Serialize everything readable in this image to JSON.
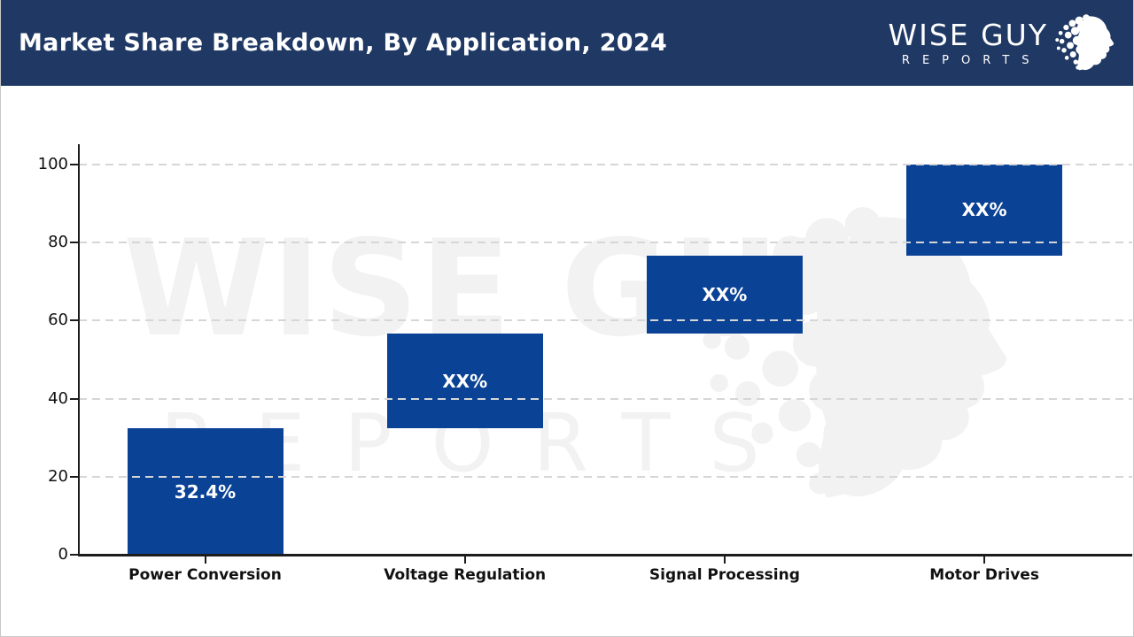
{
  "header": {
    "title": "Market Share Breakdown, By Application, 2024",
    "logo": {
      "line1": "WISE GUY",
      "line2": "REPORTS"
    }
  },
  "watermark": {
    "line1": "WISE GUY",
    "line2": "REPORTS"
  },
  "chart_data": {
    "type": "bar",
    "variant": "waterfall",
    "title": "Market Share Breakdown, By Application, 2024",
    "categories": [
      "Power Conversion",
      "Voltage Regulation",
      "Signal Processing",
      "Motor Drives"
    ],
    "series": [
      {
        "name": "Market Share",
        "segments": [
          {
            "category": "Power Conversion",
            "start": 0,
            "end": 32.4,
            "label": "32.4%"
          },
          {
            "category": "Voltage Regulation",
            "start": 32.4,
            "end": 56.6,
            "label": "XX%"
          },
          {
            "category": "Signal Processing",
            "start": 56.6,
            "end": 76.7,
            "label": "XX%"
          },
          {
            "category": "Motor Drives",
            "start": 76.7,
            "end": 100,
            "label": "XX%"
          }
        ]
      }
    ],
    "xlabel": "",
    "ylabel": "",
    "y_ticks": [
      0,
      20,
      40,
      60,
      80,
      100
    ],
    "ylim": [
      0,
      105
    ],
    "grid": "horizontal-dashed-over-bars",
    "legend": "none",
    "bar_color": "#0A4296",
    "bar_label_color": "#FFFFFF",
    "masked_values_note": "XX%"
  },
  "colors": {
    "header_bg": "#1F3864",
    "bar": "#0A4296",
    "watermark": "#F2F2F2",
    "grid": "#D6D6D6",
    "axis": "#1C1C1C",
    "text": "#111111",
    "background": "#FFFFFF"
  }
}
